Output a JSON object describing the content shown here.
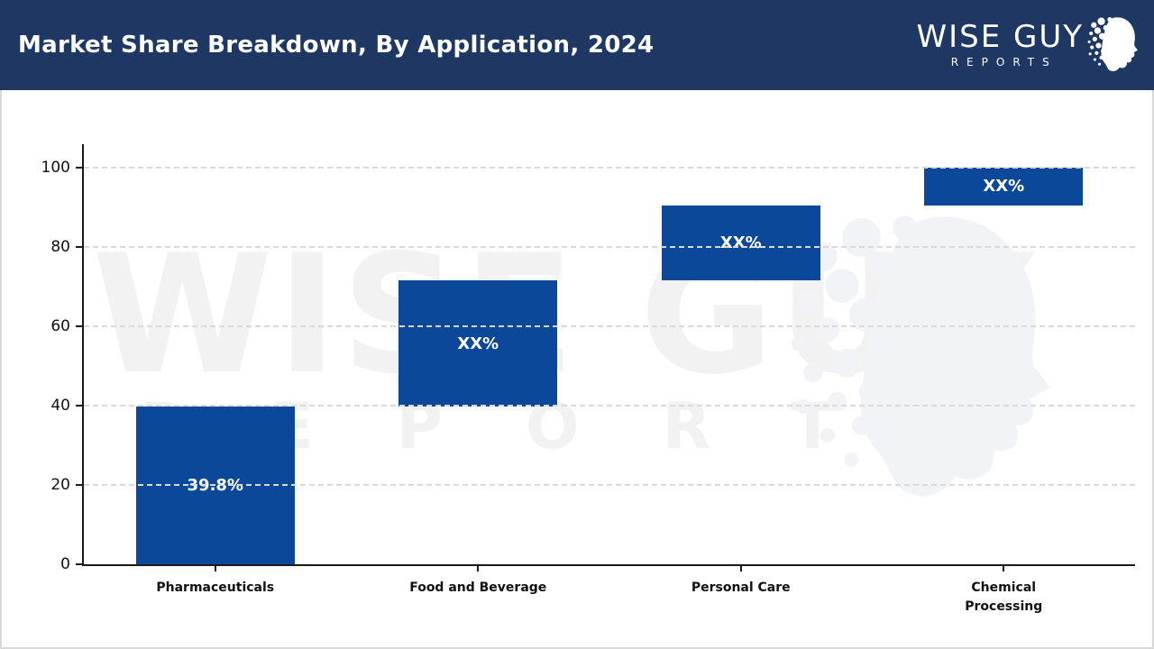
{
  "header": {
    "title": "Market Share Breakdown, By Application, 2024",
    "logo": {
      "primary": "WISE GUY",
      "secondary": "REPORTS"
    }
  },
  "watermark": {
    "primary": "WISE GUY",
    "secondary": "REPORTS"
  },
  "chart_data": {
    "type": "bar",
    "subtype": "waterfall",
    "title": "Market Share Breakdown, By Application, 2024",
    "categories": [
      "Pharmaceuticals",
      "Food and Beverage",
      "Personal Care",
      "Chemical\nProcessing"
    ],
    "series": [
      {
        "name": "Market Share",
        "segments": [
          {
            "category": "Pharmaceuticals",
            "start": 0,
            "end": 39.8,
            "label": "39.8%"
          },
          {
            "category": "Food and Beverage",
            "start": 39.8,
            "end": 71.5,
            "label": "XX%"
          },
          {
            "category": "Personal Care",
            "start": 71.5,
            "end": 90.5,
            "label": "XX%"
          },
          {
            "category": "Chemical Processing",
            "start": 90.5,
            "end": 100,
            "label": "XX%"
          }
        ]
      }
    ],
    "ylim": [
      0,
      106
    ],
    "yticks": [
      0,
      20,
      40,
      60,
      80,
      100
    ],
    "grid": "horizontal-dashed",
    "legend": "none",
    "colors": {
      "bar": "#0c4899",
      "bar_label": "#ffffff",
      "grid": "#d9d9d9",
      "axis": "#1a1a1a",
      "tick_label": "#111111",
      "header_bg": "#1f3763",
      "header_text": "#ffffff",
      "watermark": "#f2f2f2",
      "frame_border": "#d9d9d9"
    }
  }
}
